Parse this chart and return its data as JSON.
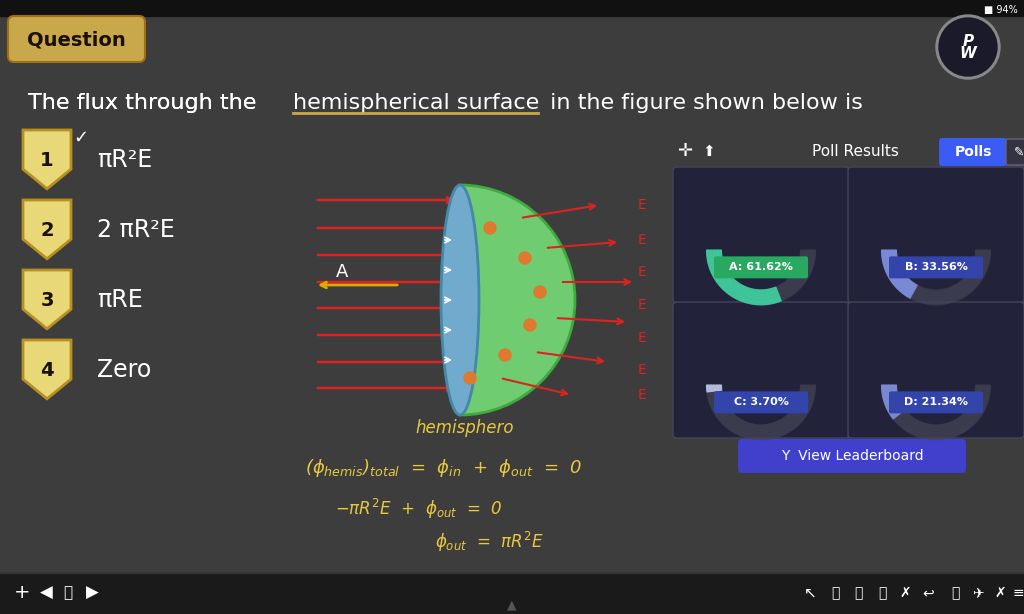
{
  "bg_color": "#3d3d3d",
  "question_badge_color": "#c8a84b",
  "question_text": "Question",
  "shield_color_light": "#e8d878",
  "shield_color_dark": "#b89020",
  "poll_results_text": "Poll Results",
  "polls_btn_text": "Polls",
  "polls_btn_color": "#3a5cf5",
  "poll_labels": [
    "A: 61.62%",
    "B: 33.56%",
    "C: 3.70%",
    "D: 21.34%"
  ],
  "poll_pcts": [
    0.62,
    0.34,
    0.037,
    0.21
  ],
  "poll_is_green": [
    true,
    false,
    false,
    false
  ],
  "poll_a_fill": "#40d0a0",
  "poll_b_fill": "#8090e0",
  "poll_c_fill": "#c0c8e8",
  "poll_d_fill": "#8090d8",
  "poll_bg_arc": "#444455",
  "annotation_color": "#e8c840",
  "arrow_color": "#dd2222",
  "arrow_color_yellow": "#ddaa00",
  "hemisphere_green": "#70cc70",
  "hemisphere_blue": "#70aacc",
  "bottom_bar_color": "#1a1a1a",
  "top_bar_color": "#111111",
  "leaderboard_color": "#4040cc",
  "panel_bg": "#22223a",
  "panel_border": "#44445a"
}
